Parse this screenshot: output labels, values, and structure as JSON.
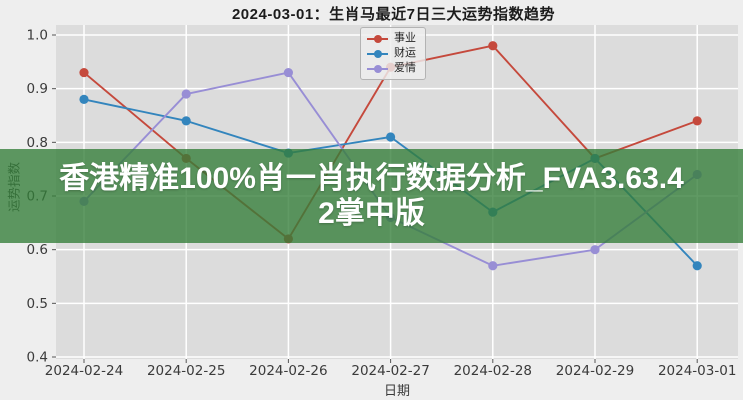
{
  "title": "2024-03-01：生肖马最近7日三大运势指数趋势",
  "watermark_overlay": {
    "lines": [
      "香港精准100%肖一肖执行数据分析_FVA3.63.4",
      "2掌中版"
    ],
    "background_color": "rgba(51,125,56,0.78)",
    "text_color": "#ffffff"
  },
  "chart_data": {
    "type": "line",
    "title": "2024-03-01：生肖马最近7日三大运势指数趋势",
    "xlabel": "日期",
    "ylabel": "运势指数",
    "categories": [
      "2024-02-24",
      "2024-02-25",
      "2024-02-26",
      "2024-02-27",
      "2024-02-28",
      "2024-02-29",
      "2024-03-01"
    ],
    "series": [
      {
        "name": "事业",
        "color": "#c5493c",
        "values": [
          0.93,
          0.77,
          0.62,
          0.94,
          0.98,
          0.77,
          0.84
        ]
      },
      {
        "name": "财运",
        "color": "#3385bd",
        "values": [
          0.88,
          0.84,
          0.78,
          0.81,
          0.67,
          0.77,
          0.57
        ]
      },
      {
        "name": "爱情",
        "color": "#988ed5",
        "values": [
          0.69,
          0.89,
          0.93,
          0.66,
          0.57,
          0.6,
          0.74
        ]
      }
    ],
    "ylim": [
      0.4,
      1.0
    ],
    "yticks": [
      0.4,
      0.5,
      0.6,
      0.7,
      0.8,
      0.9,
      1.0
    ],
    "grid": true,
    "grid_color": "#ffffff",
    "plot_bg": "#dcdcdc",
    "figure_bg": "#eeeeee",
    "legend_position": "upper-center",
    "marker": "circle"
  }
}
